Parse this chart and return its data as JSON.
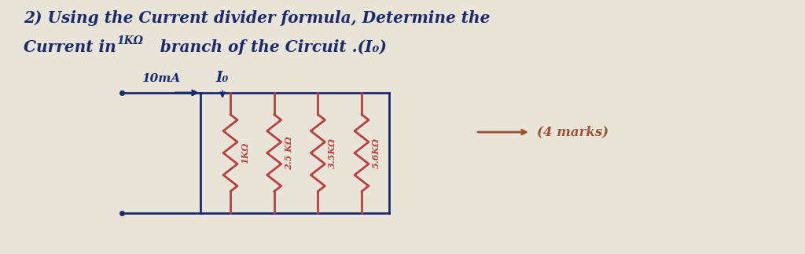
{
  "background_color": "#e8e4d8",
  "title_line1": "2) Using the Current divider formula, Determine the",
  "title_line2": "Current in        branch of the Circuit .(I₀)",
  "title_line2_insert": "1KΩ",
  "text_10mA": "10mA",
  "text_I0": "I₀",
  "text_marks": "(4 marks)",
  "resistors": [
    "1KΩ",
    "2.5 KΩ",
    "3.5KΩ",
    "5.6KΩ"
  ],
  "ink_color_blue": "#1a2a6e",
  "ink_color_red": "#b84040",
  "ink_color_marks": "#a05030",
  "font_size_title": 14.5,
  "font_size_labels": 11
}
